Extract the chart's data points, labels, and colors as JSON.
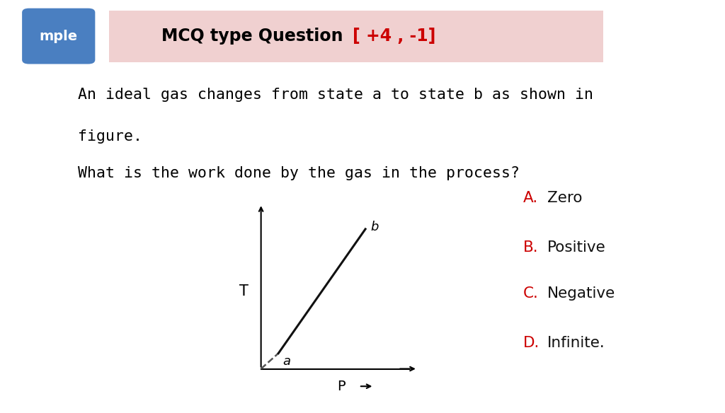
{
  "bg_color": "#ffffff",
  "left_strip_color": "#1a1a1a",
  "header_bg": "#f0d0d0",
  "header_text_black": "MCQ type Question ",
  "header_text_red": "[ +4 , -1]",
  "header_fontsize": 17,
  "blue_label_text": "mple",
  "blue_label_bg": "#4a7fc1",
  "question_line1": "An ideal gas changes from state a to state b as shown in",
  "question_line2": "figure.",
  "question_line3": "What is the work done by the gas in the process?",
  "question_fontsize": 15.5,
  "options": [
    {
      "letter": "A.",
      "text": "Zero"
    },
    {
      "letter": "B.",
      "text": "Positive"
    },
    {
      "letter": "C.",
      "text": "Negative"
    },
    {
      "letter": "D.",
      "text": "Infinite."
    }
  ],
  "option_letter_color": "#cc0000",
  "option_text_color": "#111111",
  "option_fontsize": 15.5,
  "graph_axis_color": "#000000",
  "graph_line_color": "#111111",
  "graph_dashed_color": "#555555",
  "label_T": "T",
  "label_P": "P",
  "label_a": "a",
  "label_b": "b"
}
